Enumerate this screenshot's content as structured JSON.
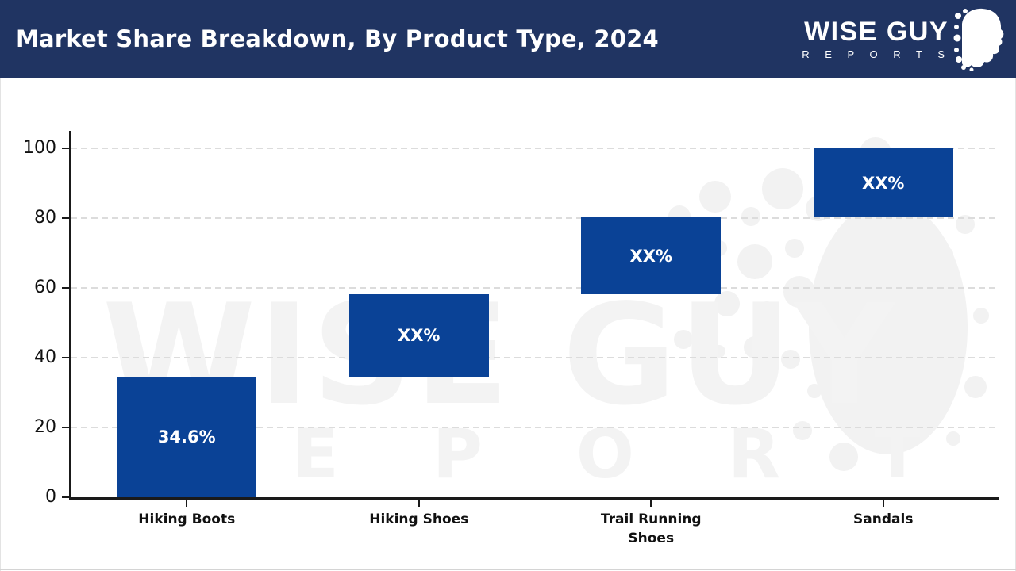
{
  "header": {
    "title": "Market Share Breakdown, By Product Type, 2024",
    "bg_color": "#203462",
    "logo_line1": "WISE GUY",
    "logo_line2": "R E P O R T S"
  },
  "watermark": {
    "line1": "WISE GUY",
    "line2": "R E P O R T S",
    "color": "#f3f3f3"
  },
  "chart_data": {
    "type": "bar",
    "variant": "waterfall",
    "title": "Market Share Breakdown, By Product Type, 2024",
    "categories": [
      "Hiking Boots",
      "Hiking Shoes",
      "Trail Running Shoes",
      "Sandals"
    ],
    "segments": [
      {
        "category": "Hiking Boots",
        "start": 0,
        "end": 34.6,
        "label": "34.6%"
      },
      {
        "category": "Hiking Shoes",
        "start": 34.6,
        "end": 58.2,
        "label": "XX%"
      },
      {
        "category": "Trail Running Shoes",
        "start": 58.2,
        "end": 80.2,
        "label": "XX%"
      },
      {
        "category": "Sandals",
        "start": 80.2,
        "end": 100,
        "label": "XX%"
      }
    ],
    "xlabel": "",
    "ylabel": "",
    "ylim": [
      0,
      100
    ],
    "yticks": [
      0,
      20,
      40,
      60,
      80,
      100
    ],
    "grid": {
      "horizontal": true,
      "style": "dashed",
      "color": "#dcdcdc"
    },
    "legend": null,
    "bar_color": "#0a4296",
    "bar_label_color": "#ffffff",
    "axis_color": "#1a1a1a",
    "tick_label_color": "#111111"
  }
}
